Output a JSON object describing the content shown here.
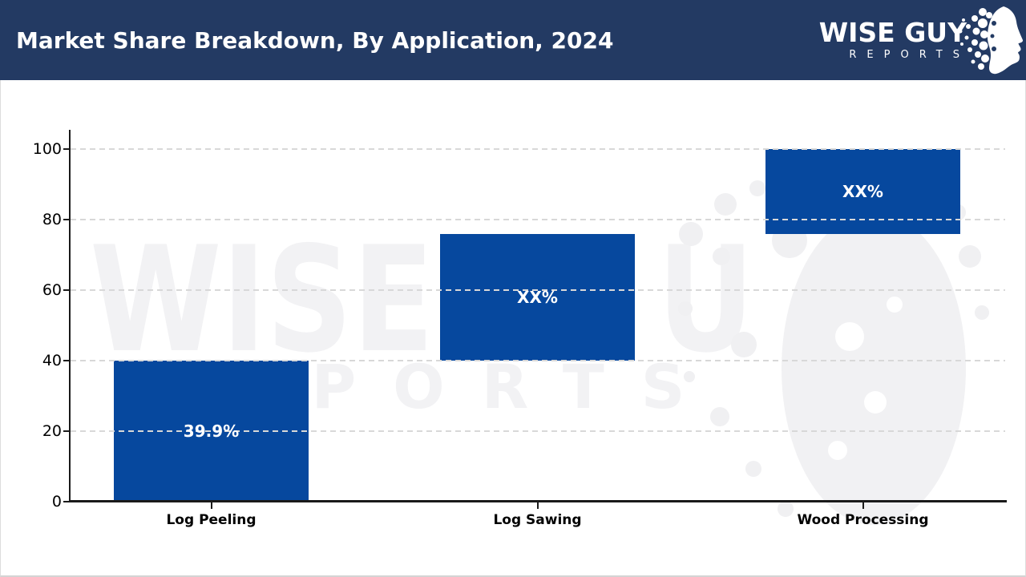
{
  "header": {
    "title": "Market Share Breakdown, By Application, 2024"
  },
  "logo": {
    "line1": "WISE GUY",
    "line2": "REPORTS"
  },
  "watermark": {
    "line1_a": "WISE",
    "line1_b": "GUY",
    "line2": "REPORTS"
  },
  "colors": {
    "header_bg": "#233A63",
    "bar": "#06489E",
    "grid": "#d8d8d8",
    "axis": "#1a1a1a"
  },
  "chart_data": {
    "type": "bar",
    "subtype": "floating-waterfall",
    "title": "Market Share Breakdown, By Application, 2024",
    "categories": [
      "Log Peeling",
      "Log Sawing",
      "Wood Processing"
    ],
    "segments": [
      {
        "category": "Log Peeling",
        "start": 0,
        "end": 39.9,
        "label": "39.9%"
      },
      {
        "category": "Log Sawing",
        "start": 39.9,
        "end": 76,
        "label": "XX%"
      },
      {
        "category": "Wood Processing",
        "start": 76,
        "end": 100,
        "label": "XX%"
      }
    ],
    "bar_labels": [
      "39.9%",
      "XX%",
      "XX%"
    ],
    "yticks": [
      0,
      20,
      40,
      60,
      80,
      100
    ],
    "ylim": [
      0,
      100
    ],
    "xlabel": "",
    "ylabel": "",
    "grid": "horizontal-dashed",
    "grid_above_bars": true,
    "legend": "none",
    "bar_color": "#06489E"
  }
}
